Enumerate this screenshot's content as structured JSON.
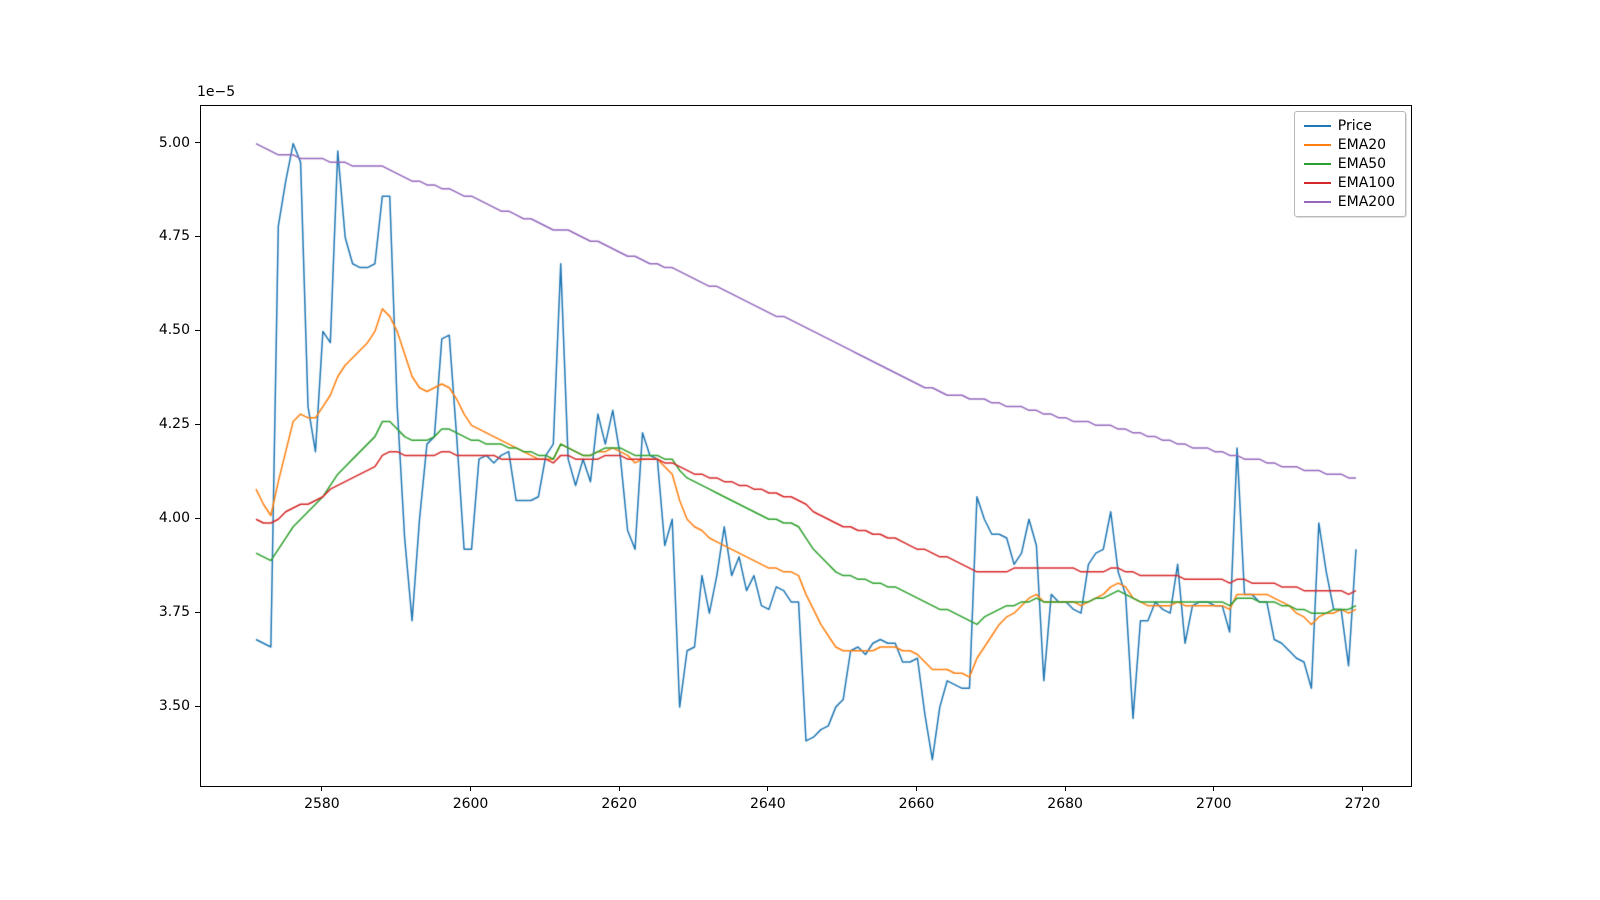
{
  "chart_data": {
    "type": "line",
    "title": "",
    "xlabel": "",
    "ylabel": "",
    "offset_text": "1e−5",
    "grid": false,
    "legend_position": "upper right",
    "background_color": "#ffffff",
    "frame_color": "#000000",
    "xlim": [
      2563.6,
      2726.4
    ],
    "ylim": [
      3.29,
      5.1
    ],
    "xticks": [
      2580,
      2600,
      2620,
      2640,
      2660,
      2680,
      2700,
      2720
    ],
    "yticks": [
      3.5,
      3.75,
      4.0,
      4.25,
      4.5,
      4.75,
      5.0
    ],
    "x": [
      2571,
      2572,
      2573,
      2574,
      2575,
      2576,
      2577,
      2578,
      2579,
      2580,
      2581,
      2582,
      2583,
      2584,
      2585,
      2586,
      2587,
      2588,
      2589,
      2590,
      2591,
      2592,
      2593,
      2594,
      2595,
      2596,
      2597,
      2598,
      2599,
      2600,
      2601,
      2602,
      2603,
      2604,
      2605,
      2606,
      2607,
      2608,
      2609,
      2610,
      2611,
      2612,
      2613,
      2614,
      2615,
      2616,
      2617,
      2618,
      2619,
      2620,
      2621,
      2622,
      2623,
      2624,
      2625,
      2626,
      2627,
      2628,
      2629,
      2630,
      2631,
      2632,
      2633,
      2634,
      2635,
      2636,
      2637,
      2638,
      2639,
      2640,
      2641,
      2642,
      2643,
      2644,
      2645,
      2646,
      2647,
      2648,
      2649,
      2650,
      2651,
      2652,
      2653,
      2654,
      2655,
      2656,
      2657,
      2658,
      2659,
      2660,
      2661,
      2662,
      2663,
      2664,
      2665,
      2666,
      2667,
      2668,
      2669,
      2670,
      2671,
      2672,
      2673,
      2674,
      2675,
      2676,
      2677,
      2678,
      2679,
      2680,
      2681,
      2682,
      2683,
      2684,
      2685,
      2686,
      2687,
      2688,
      2689,
      2690,
      2691,
      2692,
      2693,
      2694,
      2695,
      2696,
      2697,
      2698,
      2699,
      2700,
      2701,
      2702,
      2703,
      2704,
      2705,
      2706,
      2707,
      2708,
      2709,
      2710,
      2711,
      2712,
      2713,
      2714,
      2715,
      2716,
      2717,
      2718,
      2719
    ],
    "series": [
      {
        "name": "Price",
        "color": "#1f77b4",
        "values": [
          3.68,
          3.67,
          3.66,
          4.78,
          4.9,
          5.0,
          4.95,
          4.3,
          4.18,
          4.5,
          4.47,
          4.98,
          4.75,
          4.68,
          4.67,
          4.67,
          4.68,
          4.86,
          4.86,
          4.3,
          3.95,
          3.73,
          4.0,
          4.2,
          4.22,
          4.48,
          4.49,
          4.22,
          3.92,
          3.92,
          4.16,
          4.17,
          4.15,
          4.17,
          4.18,
          4.05,
          4.05,
          4.05,
          4.06,
          4.17,
          4.2,
          4.68,
          4.16,
          4.09,
          4.16,
          4.1,
          4.28,
          4.2,
          4.29,
          4.17,
          3.97,
          3.92,
          4.23,
          4.17,
          4.16,
          3.93,
          4.0,
          3.5,
          3.65,
          3.66,
          3.85,
          3.75,
          3.85,
          3.98,
          3.85,
          3.9,
          3.81,
          3.85,
          3.77,
          3.76,
          3.82,
          3.81,
          3.78,
          3.78,
          3.41,
          3.42,
          3.44,
          3.45,
          3.5,
          3.52,
          3.65,
          3.66,
          3.64,
          3.67,
          3.68,
          3.67,
          3.67,
          3.62,
          3.62,
          3.63,
          3.48,
          3.36,
          3.5,
          3.57,
          3.56,
          3.55,
          3.55,
          4.06,
          4.0,
          3.96,
          3.96,
          3.95,
          3.88,
          3.91,
          4.0,
          3.93,
          3.57,
          3.8,
          3.78,
          3.78,
          3.76,
          3.75,
          3.88,
          3.91,
          3.92,
          4.02,
          3.86,
          3.8,
          3.47,
          3.73,
          3.73,
          3.78,
          3.76,
          3.75,
          3.88,
          3.67,
          3.77,
          3.78,
          3.78,
          3.77,
          3.77,
          3.7,
          4.19,
          3.8,
          3.8,
          3.78,
          3.78,
          3.68,
          3.67,
          3.65,
          3.63,
          3.62,
          3.55,
          3.99,
          3.86,
          3.76,
          3.76,
          3.61,
          3.92
        ]
      },
      {
        "name": "EMA20",
        "color": "#ff7f0e",
        "values": [
          4.08,
          4.04,
          4.01,
          4.1,
          4.18,
          4.26,
          4.28,
          4.27,
          4.27,
          4.3,
          4.33,
          4.38,
          4.41,
          4.43,
          4.45,
          4.47,
          4.5,
          4.56,
          4.54,
          4.5,
          4.44,
          4.38,
          4.35,
          4.34,
          4.35,
          4.36,
          4.35,
          4.32,
          4.28,
          4.25,
          4.24,
          4.23,
          4.22,
          4.21,
          4.2,
          4.19,
          4.18,
          4.17,
          4.16,
          4.16,
          4.16,
          4.2,
          4.19,
          4.18,
          4.17,
          4.17,
          4.18,
          4.18,
          4.19,
          4.18,
          4.17,
          4.15,
          4.16,
          4.16,
          4.16,
          4.14,
          4.12,
          4.05,
          4.0,
          3.98,
          3.97,
          3.95,
          3.94,
          3.93,
          3.92,
          3.91,
          3.9,
          3.89,
          3.88,
          3.87,
          3.87,
          3.86,
          3.86,
          3.85,
          3.8,
          3.76,
          3.72,
          3.69,
          3.66,
          3.65,
          3.65,
          3.65,
          3.65,
          3.65,
          3.66,
          3.66,
          3.66,
          3.65,
          3.65,
          3.64,
          3.62,
          3.6,
          3.6,
          3.6,
          3.59,
          3.59,
          3.58,
          3.63,
          3.66,
          3.69,
          3.72,
          3.74,
          3.75,
          3.77,
          3.79,
          3.8,
          3.78,
          3.78,
          3.78,
          3.78,
          3.78,
          3.77,
          3.78,
          3.79,
          3.8,
          3.82,
          3.83,
          3.82,
          3.79,
          3.78,
          3.77,
          3.77,
          3.77,
          3.77,
          3.78,
          3.77,
          3.77,
          3.77,
          3.77,
          3.77,
          3.77,
          3.76,
          3.8,
          3.8,
          3.8,
          3.8,
          3.8,
          3.79,
          3.78,
          3.77,
          3.75,
          3.74,
          3.72,
          3.74,
          3.75,
          3.75,
          3.76,
          3.75,
          3.76
        ]
      },
      {
        "name": "EMA50",
        "color": "#2ca02c",
        "values": [
          3.91,
          3.9,
          3.89,
          3.92,
          3.95,
          3.98,
          4.0,
          4.02,
          4.04,
          4.06,
          4.09,
          4.12,
          4.14,
          4.16,
          4.18,
          4.2,
          4.22,
          4.26,
          4.26,
          4.24,
          4.22,
          4.21,
          4.21,
          4.21,
          4.22,
          4.24,
          4.24,
          4.23,
          4.22,
          4.21,
          4.21,
          4.2,
          4.2,
          4.2,
          4.19,
          4.19,
          4.18,
          4.18,
          4.17,
          4.17,
          4.16,
          4.2,
          4.19,
          4.18,
          4.17,
          4.17,
          4.18,
          4.19,
          4.19,
          4.19,
          4.18,
          4.17,
          4.17,
          4.17,
          4.17,
          4.16,
          4.16,
          4.13,
          4.11,
          4.1,
          4.09,
          4.08,
          4.07,
          4.06,
          4.05,
          4.04,
          4.03,
          4.02,
          4.01,
          4.0,
          4.0,
          3.99,
          3.99,
          3.98,
          3.95,
          3.92,
          3.9,
          3.88,
          3.86,
          3.85,
          3.85,
          3.84,
          3.84,
          3.83,
          3.83,
          3.82,
          3.82,
          3.81,
          3.8,
          3.79,
          3.78,
          3.77,
          3.76,
          3.76,
          3.75,
          3.74,
          3.73,
          3.72,
          3.74,
          3.75,
          3.76,
          3.77,
          3.77,
          3.78,
          3.78,
          3.79,
          3.78,
          3.78,
          3.78,
          3.78,
          3.78,
          3.78,
          3.78,
          3.79,
          3.79,
          3.8,
          3.81,
          3.8,
          3.79,
          3.78,
          3.78,
          3.78,
          3.78,
          3.78,
          3.78,
          3.78,
          3.78,
          3.78,
          3.78,
          3.78,
          3.78,
          3.77,
          3.79,
          3.79,
          3.79,
          3.78,
          3.78,
          3.78,
          3.77,
          3.77,
          3.76,
          3.76,
          3.75,
          3.75,
          3.75,
          3.76,
          3.76,
          3.76,
          3.77
        ]
      },
      {
        "name": "EMA100",
        "color": "#d62728",
        "values": [
          4.0,
          3.99,
          3.99,
          4.0,
          4.02,
          4.03,
          4.04,
          4.04,
          4.05,
          4.06,
          4.08,
          4.09,
          4.1,
          4.11,
          4.12,
          4.13,
          4.14,
          4.17,
          4.18,
          4.18,
          4.17,
          4.17,
          4.17,
          4.17,
          4.17,
          4.18,
          4.18,
          4.17,
          4.17,
          4.17,
          4.17,
          4.17,
          4.17,
          4.16,
          4.16,
          4.16,
          4.16,
          4.16,
          4.16,
          4.16,
          4.15,
          4.17,
          4.17,
          4.16,
          4.16,
          4.16,
          4.16,
          4.17,
          4.17,
          4.17,
          4.16,
          4.16,
          4.16,
          4.16,
          4.16,
          4.15,
          4.15,
          4.14,
          4.13,
          4.12,
          4.12,
          4.11,
          4.11,
          4.1,
          4.1,
          4.09,
          4.09,
          4.08,
          4.08,
          4.07,
          4.07,
          4.06,
          4.06,
          4.05,
          4.04,
          4.02,
          4.01,
          4.0,
          3.99,
          3.98,
          3.98,
          3.97,
          3.97,
          3.96,
          3.96,
          3.95,
          3.95,
          3.94,
          3.93,
          3.92,
          3.92,
          3.91,
          3.9,
          3.9,
          3.89,
          3.88,
          3.87,
          3.86,
          3.86,
          3.86,
          3.86,
          3.86,
          3.87,
          3.87,
          3.87,
          3.87,
          3.87,
          3.87,
          3.87,
          3.87,
          3.87,
          3.86,
          3.86,
          3.86,
          3.86,
          3.87,
          3.87,
          3.86,
          3.86,
          3.85,
          3.85,
          3.85,
          3.85,
          3.85,
          3.85,
          3.84,
          3.84,
          3.84,
          3.84,
          3.84,
          3.84,
          3.83,
          3.84,
          3.84,
          3.83,
          3.83,
          3.83,
          3.83,
          3.82,
          3.82,
          3.82,
          3.81,
          3.81,
          3.81,
          3.81,
          3.81,
          3.81,
          3.8,
          3.81
        ]
      },
      {
        "name": "EMA200",
        "color": "#9467bd",
        "values": [
          5.0,
          4.99,
          4.98,
          4.97,
          4.97,
          4.97,
          4.96,
          4.96,
          4.96,
          4.96,
          4.95,
          4.95,
          4.95,
          4.94,
          4.94,
          4.94,
          4.94,
          4.94,
          4.93,
          4.92,
          4.91,
          4.9,
          4.9,
          4.89,
          4.89,
          4.88,
          4.88,
          4.87,
          4.86,
          4.86,
          4.85,
          4.84,
          4.83,
          4.82,
          4.82,
          4.81,
          4.8,
          4.8,
          4.79,
          4.78,
          4.77,
          4.77,
          4.77,
          4.76,
          4.75,
          4.74,
          4.74,
          4.73,
          4.72,
          4.71,
          4.7,
          4.7,
          4.69,
          4.68,
          4.68,
          4.67,
          4.67,
          4.66,
          4.65,
          4.64,
          4.63,
          4.62,
          4.62,
          4.61,
          4.6,
          4.59,
          4.58,
          4.57,
          4.56,
          4.55,
          4.54,
          4.54,
          4.53,
          4.52,
          4.51,
          4.5,
          4.49,
          4.48,
          4.47,
          4.46,
          4.45,
          4.44,
          4.43,
          4.42,
          4.41,
          4.4,
          4.39,
          4.38,
          4.37,
          4.36,
          4.35,
          4.35,
          4.34,
          4.33,
          4.33,
          4.33,
          4.32,
          4.32,
          4.32,
          4.31,
          4.31,
          4.3,
          4.3,
          4.3,
          4.29,
          4.29,
          4.28,
          4.28,
          4.27,
          4.27,
          4.26,
          4.26,
          4.26,
          4.25,
          4.25,
          4.25,
          4.24,
          4.24,
          4.23,
          4.23,
          4.22,
          4.22,
          4.21,
          4.21,
          4.2,
          4.2,
          4.19,
          4.19,
          4.19,
          4.18,
          4.18,
          4.17,
          4.17,
          4.16,
          4.16,
          4.16,
          4.15,
          4.15,
          4.14,
          4.14,
          4.14,
          4.13,
          4.13,
          4.13,
          4.12,
          4.12,
          4.12,
          4.11,
          4.11
        ]
      }
    ]
  }
}
